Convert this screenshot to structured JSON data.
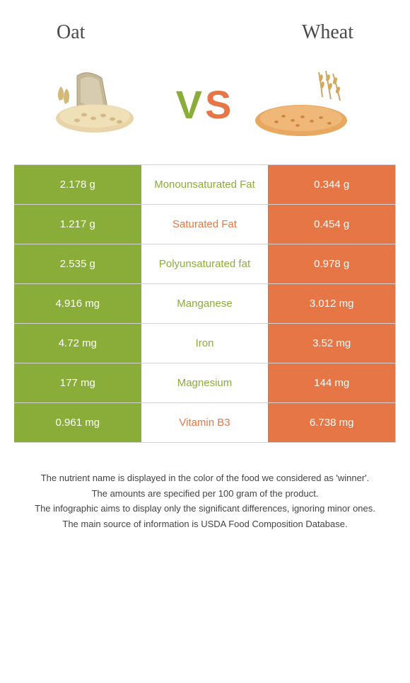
{
  "left_food": "Oat",
  "right_food": "Wheat",
  "vs": {
    "v": "V",
    "s": "S"
  },
  "colors": {
    "left": "#8aad3a",
    "right": "#e67645",
    "border": "#d0d0d0",
    "text_white": "#ffffff",
    "body": "#ffffff",
    "foot_text": "#444444"
  },
  "fonts": {
    "header_family": "Palatino Linotype, Palatino, serif",
    "body_family": "Arial, sans-serif",
    "header_size": 28,
    "vs_size": 56,
    "cell_size": 15,
    "foot_size": 13
  },
  "rows": [
    {
      "left": "2.178 g",
      "label": "Monounsaturated Fat",
      "right": "0.344 g",
      "winner": "left"
    },
    {
      "left": "1.217 g",
      "label": "Saturated Fat",
      "right": "0.454 g",
      "winner": "right"
    },
    {
      "left": "2.535 g",
      "label": "Polyunsaturated fat",
      "right": "0.978 g",
      "winner": "left"
    },
    {
      "left": "4.916 mg",
      "label": "Manganese",
      "right": "3.012 mg",
      "winner": "left"
    },
    {
      "left": "4.72 mg",
      "label": "Iron",
      "right": "3.52 mg",
      "winner": "left"
    },
    {
      "left": "177 mg",
      "label": "Magnesium",
      "right": "144 mg",
      "winner": "left"
    },
    {
      "left": "0.961 mg",
      "label": "Vitamin B3",
      "right": "6.738 mg",
      "winner": "right"
    }
  ],
  "footnotes": [
    "The nutrient name is displayed in the color of the food we considered as 'winner'.",
    "The amounts are specified per 100 gram of the product.",
    "The infographic aims to display only the significant differences, ignoring minor ones.",
    "The main source of information is USDA Food Composition Database."
  ]
}
